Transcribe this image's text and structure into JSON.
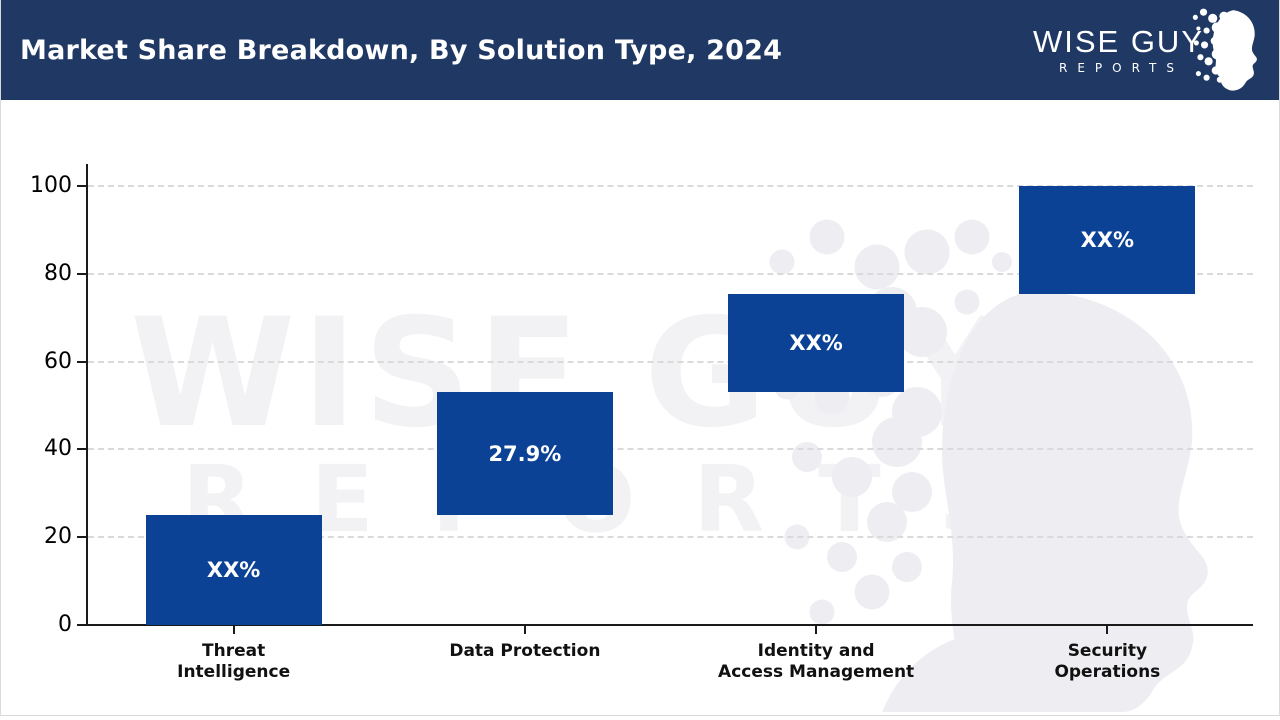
{
  "header": {
    "title": "Market Share Breakdown, By Solution Type, 2024",
    "logo": {
      "line1": "WISE GUY",
      "line2": "REPORTS"
    }
  },
  "watermark": {
    "line1": "WISE GUY",
    "line2": "REPORTS"
  },
  "chart_data": {
    "type": "bar",
    "subtype": "waterfall",
    "title": "Market Share Breakdown, By Solution Type, 2024",
    "categories": [
      "Threat Intelligence",
      "Data Protection",
      "Identity and Access Management",
      "Security Operations"
    ],
    "categories_lines": [
      [
        "Threat",
        "Intelligence"
      ],
      [
        "Data Protection"
      ],
      [
        "Identity and",
        "Access Management"
      ],
      [
        "Security",
        "Operations"
      ]
    ],
    "segments": [
      {
        "category": "Threat Intelligence",
        "start": 0,
        "end": 25.1,
        "label": "XX%"
      },
      {
        "category": "Data Protection",
        "start": 25.1,
        "end": 53.0,
        "label": "27.9%"
      },
      {
        "category": "Identity and Access Management",
        "start": 53.0,
        "end": 75.3,
        "label": "XX%"
      },
      {
        "category": "Security Operations",
        "start": 75.3,
        "end": 100,
        "label": "XX%"
      }
    ],
    "yticks": [
      0,
      20,
      40,
      60,
      80,
      100
    ],
    "ylim": [
      0,
      100
    ],
    "grid": true,
    "legend": "none",
    "bar_color": "#0c4296",
    "bar_label_color": "#ffffff",
    "header_color": "#1f3864",
    "gridline_color": "#dadada"
  }
}
